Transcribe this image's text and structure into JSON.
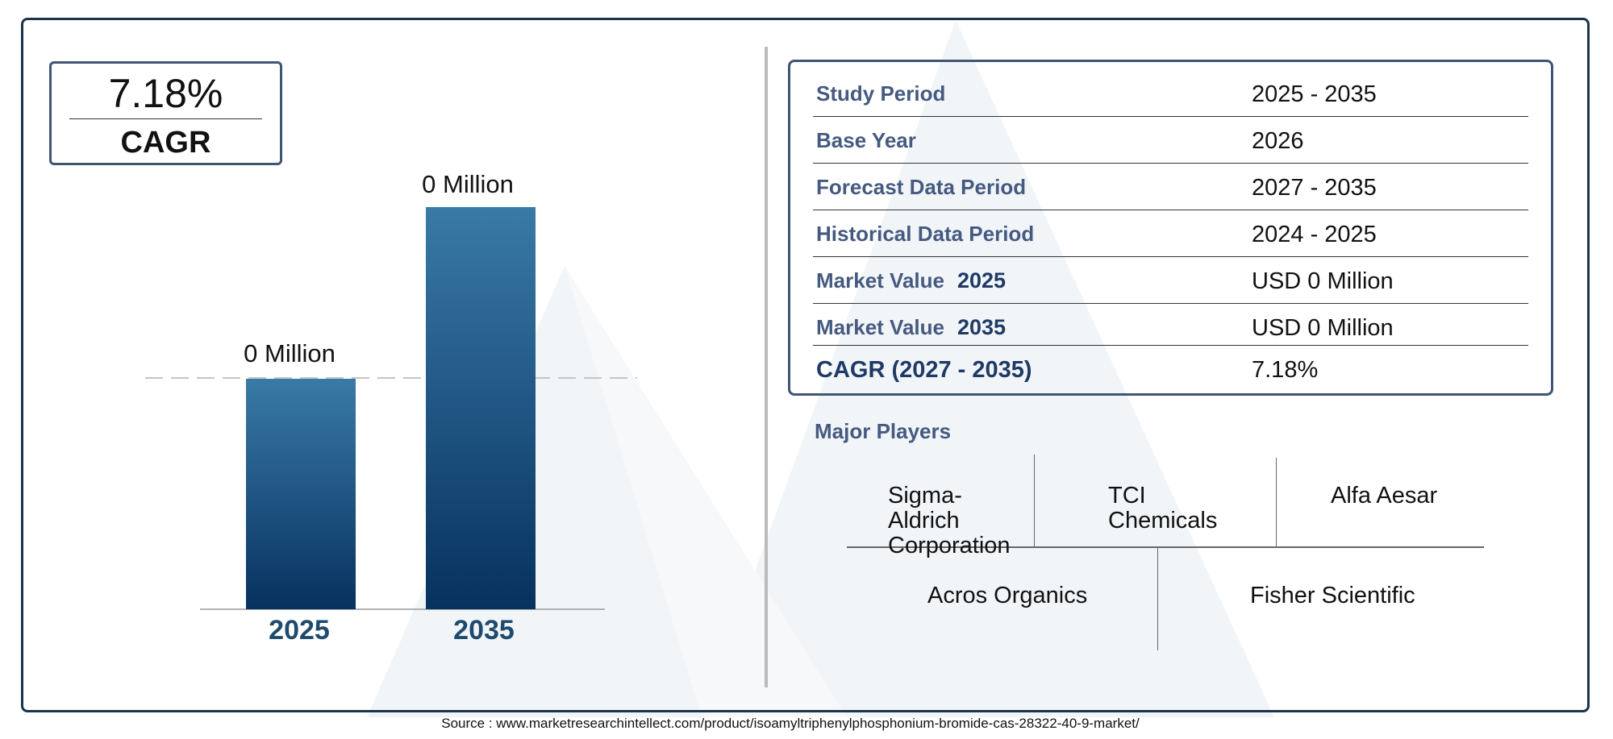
{
  "summary": {
    "cagr_value": "7.18%",
    "cagr_label": "CAGR"
  },
  "chart_data": {
    "type": "bar",
    "categories": [
      "2025",
      "2035"
    ],
    "values": [
      0,
      0
    ],
    "data_labels": [
      "0 Million",
      "0 Million"
    ],
    "title": "",
    "xlabel": "",
    "ylabel": "",
    "grid": false,
    "colors": {
      "bar_top": "#3a7aa6",
      "bar_bottom": "#07315f",
      "category_label": "#1e4a6e"
    }
  },
  "table": {
    "rows": [
      {
        "label": "Study Period",
        "year": "",
        "value": "2025 - 2035"
      },
      {
        "label": "Base Year",
        "year": "",
        "value": "2026"
      },
      {
        "label": "Forecast Data Period",
        "year": "",
        "value": "2027 - 2035"
      },
      {
        "label": "Historical Data Period",
        "year": "",
        "value": "2024 - 2025"
      },
      {
        "label": "Market Value",
        "year": "2025",
        "value": "USD 0 Million"
      },
      {
        "label": "Market Value",
        "year": "2035",
        "value": "USD 0 Million"
      },
      {
        "label": "CAGR (2027 - 2035)",
        "year": "",
        "value": "7.18%"
      }
    ]
  },
  "players": {
    "title": "Major Players",
    "names": [
      "Sigma-Aldrich Corporation",
      "TCI Chemicals",
      "Alfa Aesar",
      "Acros Organics",
      "Fisher Scientific"
    ]
  },
  "source": "Source : www.marketresearchintellect.com/product/isoamyltriphenylphosphonium-bromide-cas-28322-40-9-market/",
  "colors": {
    "frame": "#1c3349",
    "box_border": "#3f5573",
    "label_text": "#455a80",
    "watermark": "#f1f4f7"
  }
}
